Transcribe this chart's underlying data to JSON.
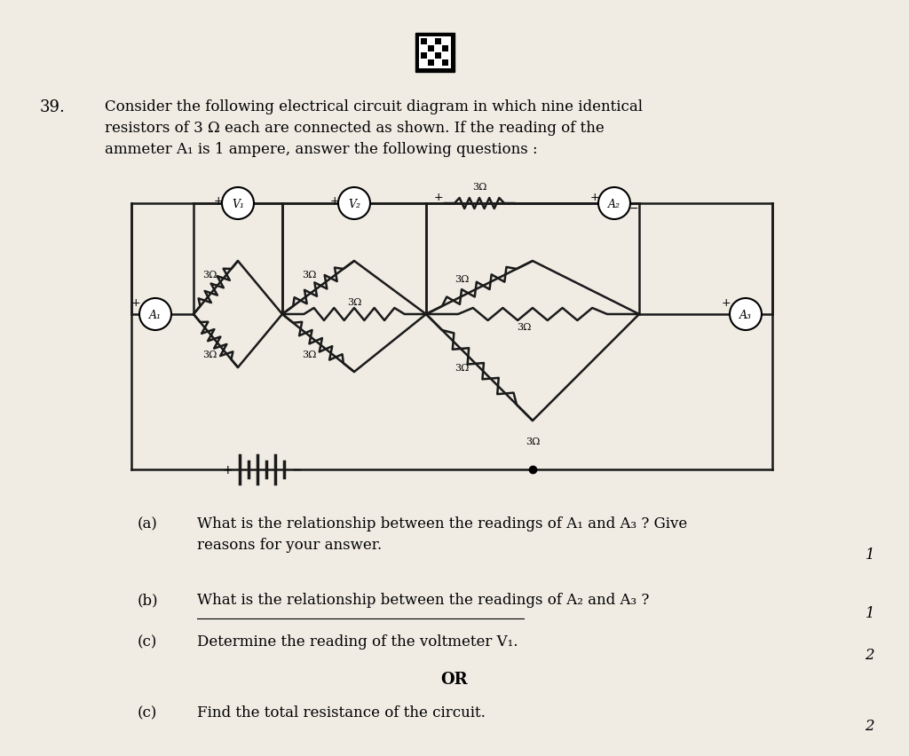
{
  "bg_color": "#f0ece4",
  "text_color": "#000000",
  "circuit_bg": "#ffffff",
  "line_color": "#1a1a1a",
  "line_width": 1.8,
  "title_num": "39.",
  "title_text": "Consider the following electrical circuit diagram in which nine identical\nresistors of 3 Ω each are connected as shown. If the reading of the\nammeter A₁ is 1 ampere, answer the following questions :",
  "qa_label": "(a)",
  "qa_text": "What is the relationship between the readings of A₁ and A₃ ? Give\nreasons for your answer.",
  "qa_marks": "1",
  "qb_label": "(b)",
  "qb_text": "What is the relationship between the readings of A₂ and A₃ ?",
  "qb_marks": "1",
  "qc_label": "(c)",
  "qc_text": "Determine the reading of the voltmeter V₁.",
  "qc_marks": "2",
  "or_text": "OR",
  "qc2_label": "(c)",
  "qc2_text": "Find the total resistance of the circuit.",
  "qc2_marks": "2"
}
